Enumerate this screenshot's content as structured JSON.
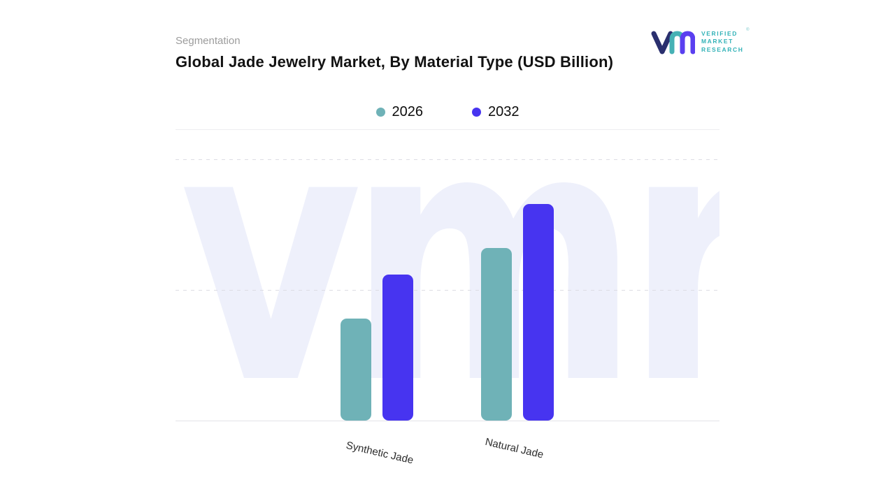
{
  "header": {
    "eyebrow": "Segmentation",
    "title": "Global Jade Jewelry Market, By Material Type (USD Billion)"
  },
  "legend": [
    {
      "label": "2026",
      "color": "#6fb2b7"
    },
    {
      "label": "2032",
      "color": "#4734f0"
    }
  ],
  "chart_data": {
    "type": "bar",
    "title": "Global Jade Jewelry Market, By Material Type (USD Billion)",
    "categories": [
      "Synthetic Jade",
      "Natural Jade"
    ],
    "series": [
      {
        "name": "2026",
        "color": "#6fb2b7",
        "values": [
          3.9,
          6.6
        ]
      },
      {
        "name": "2032",
        "color": "#4734f0",
        "values": [
          5.6,
          8.3
        ]
      }
    ],
    "ylim": [
      0,
      10
    ],
    "y_axis_tick_labels_visible": false,
    "grid": "horizontal-dashed",
    "legend_position": "top-center",
    "x_label_rotation_deg": 13
  },
  "watermark": "vmr",
  "logo": {
    "lines": [
      "VERIFIED",
      "MARKET",
      "RESEARCH"
    ],
    "registered": "®"
  }
}
